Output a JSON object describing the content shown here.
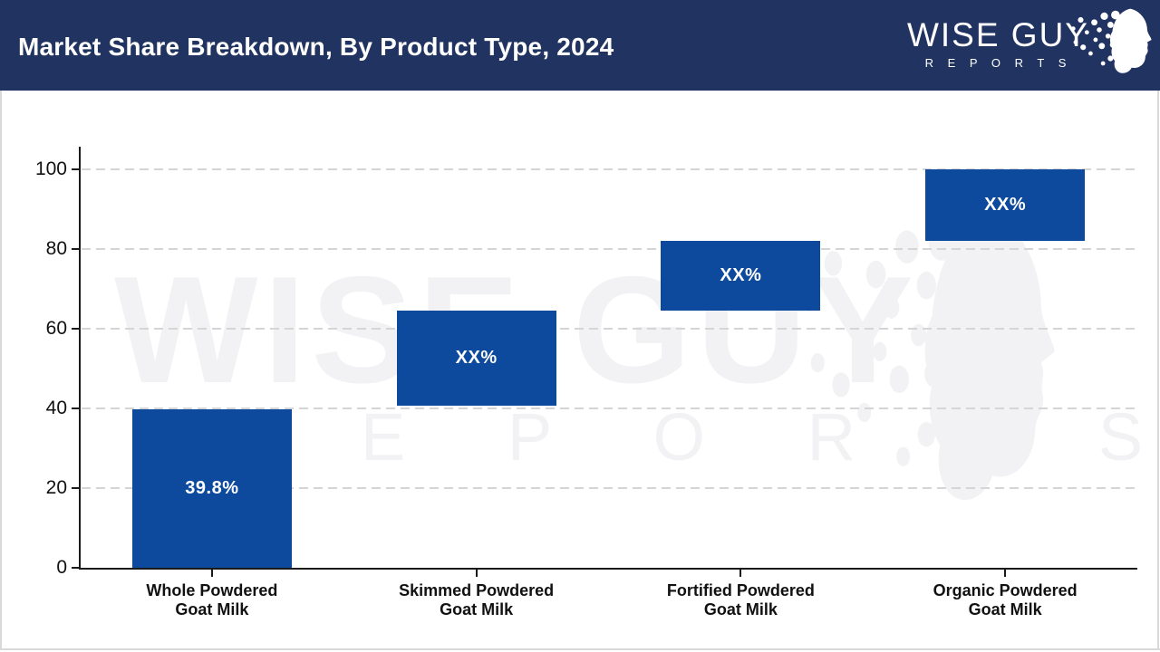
{
  "header": {
    "title": "Market Share Breakdown, By Product Type, 2024",
    "logo": {
      "name_line": "WISE GUY",
      "sub_line": "R E P O R T S"
    }
  },
  "watermark": {
    "name_line": "WISE GUY",
    "sub_line": "R E P O R T S"
  },
  "chart_data": {
    "type": "bar",
    "subtype": "waterfall",
    "title": "Market Share Breakdown, By Product Type, 2024",
    "categories": [
      "Whole Powdered\nGoat Milk",
      "Skimmed Powdered\nGoat Milk",
      "Fortified Powdered\nGoat Milk",
      "Organic Powdered\nGoat Milk"
    ],
    "segments": [
      {
        "label": "39.8%",
        "start": 0,
        "end": 39.8
      },
      {
        "label": "XX%",
        "start": 40.6,
        "end": 64.5
      },
      {
        "label": "XX%",
        "start": 64.5,
        "end": 82.0
      },
      {
        "label": "XX%",
        "start": 82.0,
        "end": 100.0
      }
    ],
    "ylim": [
      0,
      100
    ],
    "yticks": [
      0,
      20,
      40,
      60,
      80,
      100
    ],
    "xlabel": "",
    "ylabel": "",
    "grid": "horizontal-dashed",
    "legend": "none",
    "bar_color": "#0d4a9e",
    "bar_label_color": "#ffffff",
    "axis_color": "#1a1a1a",
    "gridline_color": "#d5d5d5"
  },
  "colors": {
    "header_bg": "#213461",
    "header_text": "#ffffff",
    "bar": "#0d4a9e",
    "watermark": "#f2f2f4",
    "page_bg": "#ffffff"
  }
}
